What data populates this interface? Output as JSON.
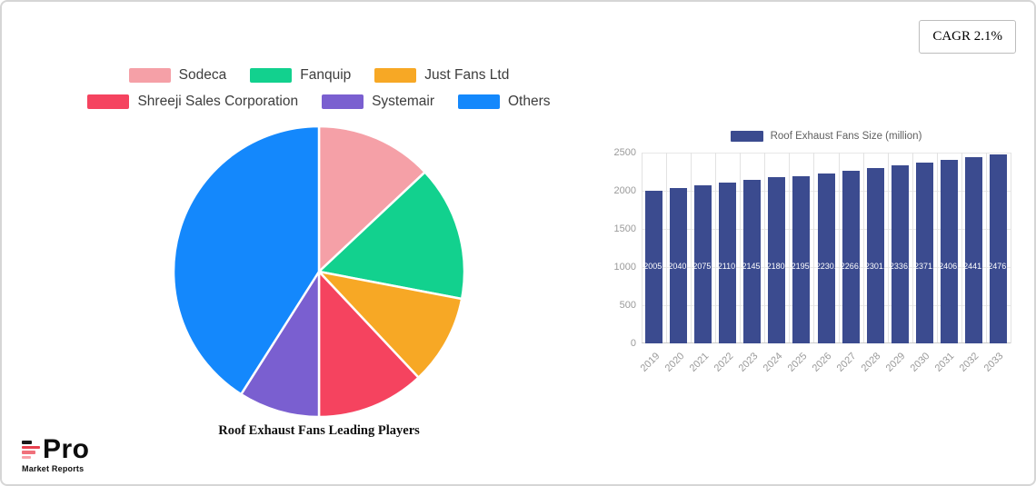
{
  "badge": {
    "cagr": "CAGR 2.1%"
  },
  "pie": {
    "title": "Roof Exhaust Fans Leading Players",
    "legend_rows": [
      [
        "Sodeca",
        "Fanquip",
        "Just Fans Ltd"
      ],
      [
        "Shreeji Sales Corporation",
        "Systemair",
        "Others"
      ]
    ]
  },
  "bar": {
    "legend": "Roof Exhaust Fans Size (million)"
  },
  "logo": {
    "title": "Pro",
    "subtitle": "Market Reports"
  },
  "chart_data": [
    {
      "type": "pie",
      "title": "Roof Exhaust Fans Leading Players",
      "labels": [
        "Sodeca",
        "Fanquip",
        "Just Fans Ltd",
        "Shreeji Sales Corporation",
        "Systemair",
        "Others"
      ],
      "values": [
        13,
        15,
        10,
        12,
        9,
        41
      ],
      "colors": [
        "#f5a0a7",
        "#12d18e",
        "#f7a825",
        "#f5435f",
        "#7a5fd0",
        "#1488fc"
      ],
      "legend_position": "top",
      "start_angle_deg": -90,
      "direction": "clockwise"
    },
    {
      "type": "bar",
      "legend": [
        "Roof Exhaust Fans Size (million)"
      ],
      "categories": [
        "2019",
        "2020",
        "2021",
        "2022",
        "2023",
        "2024",
        "2025",
        "2026",
        "2027",
        "2028",
        "2029",
        "2030",
        "2031",
        "2032",
        "2033"
      ],
      "values": [
        2005,
        2040,
        2075,
        2110,
        2145,
        2180,
        2195,
        2230,
        2266,
        2301,
        2336,
        2371,
        2406,
        2441,
        2476
      ],
      "bar_labels": [
        "2005.",
        "2040.",
        "2075.",
        "2110.",
        "2145.",
        "2180.",
        "2195.",
        "2230.",
        "2266.",
        "2301.",
        "2336.",
        "2371.",
        "2406.",
        "2441.",
        "2476."
      ],
      "color": "#3b4b8f",
      "xlabel": "",
      "ylabel": "",
      "y_ticks": [
        0,
        500,
        1000,
        1500,
        2000,
        2500
      ],
      "ylim": [
        0,
        2500
      ],
      "grid": true,
      "x_tick_rotation": -45,
      "value_label_color": "#ffffff"
    }
  ]
}
